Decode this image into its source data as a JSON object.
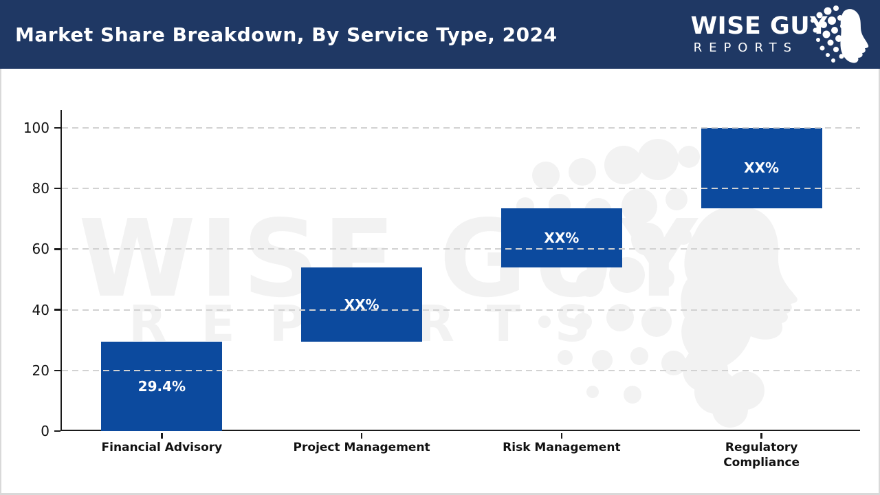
{
  "header": {
    "title": "Market Share Breakdown, By Service Type, 2024",
    "logo": {
      "brand": "WISE GUY",
      "sub": "REPORTS"
    }
  },
  "watermark": {
    "brand": "WISE GUY",
    "sub": "REPORTS"
  },
  "colors": {
    "header_bg": "#1f3864",
    "header_text": "#ffffff",
    "bar": "#0c4a9e",
    "bar_label": "#ffffff",
    "grid": "#d2d2d2",
    "axis": "#1a1a1a",
    "tick_label": "#111111",
    "watermark": "#f2f2f2",
    "page_border": "#d9d9d9"
  },
  "chart_data": {
    "type": "bar",
    "subtype": "waterfall (floating stacked-range bars, cumulative to 100%)",
    "title": "Market Share Breakdown, By Service Type, 2024",
    "categories": [
      "Financial Advisory",
      "Project Management",
      "Risk Management",
      "Regulatory\nCompliance"
    ],
    "series": [
      {
        "name": "Market share (%)",
        "segments": [
          {
            "category": "Financial Advisory",
            "start": 0,
            "end": 29.4,
            "label": "29.4%"
          },
          {
            "category": "Project Management",
            "start": 29.4,
            "end": 54,
            "label": "XX%"
          },
          {
            "category": "Risk Management",
            "start": 54,
            "end": 73.5,
            "label": "XX%"
          },
          {
            "category": "Regulatory Compliance",
            "start": 73.5,
            "end": 100,
            "label": "XX%"
          }
        ]
      }
    ],
    "xlabel": "",
    "ylabel": "",
    "ylim": [
      0,
      100
    ],
    "yticks": [
      0,
      20,
      40,
      60,
      80,
      100
    ],
    "grid": "horizontal dashed, drawn over bars",
    "legend": "none"
  }
}
